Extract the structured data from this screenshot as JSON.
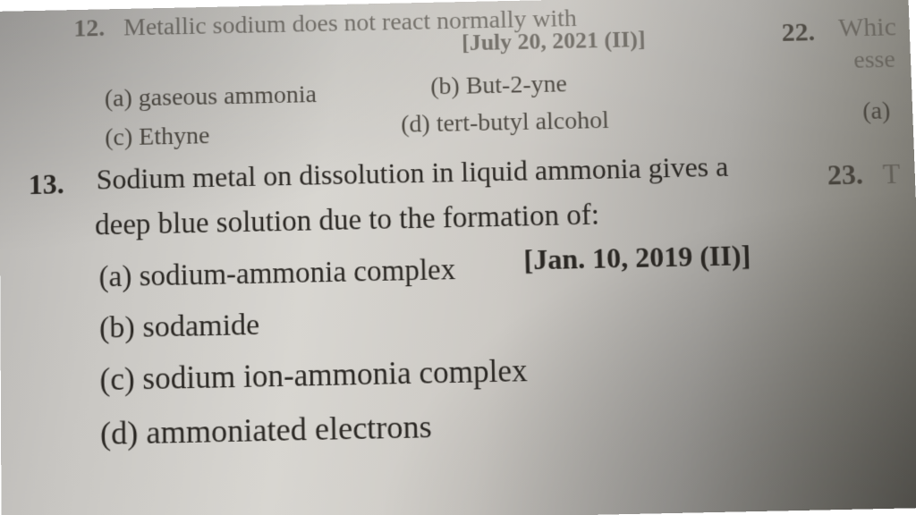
{
  "q12": {
    "num": "12.",
    "stem": "Metallic sodium does not react normally with",
    "source": "[July 20, 2021 (II)]",
    "a": "(a)  gaseous ammonia",
    "b": "(b)  But-2-yne",
    "c": "(c)  Ethyne",
    "d": "(d)  tert-butyl alcohol"
  },
  "q13": {
    "num": "13.",
    "line1": "Sodium metal on dissolution in liquid ammonia gives a",
    "line2": "deep blue solution due to the formation of:",
    "source": "[Jan. 10, 2019 (II)]",
    "a": "(a)   sodium-ammonia complex",
    "b": "(b)   sodamide",
    "c": "(c)   sodium ion-ammonia complex",
    "d": "(d)   ammoniated electrons"
  },
  "q22": {
    "num": "22.",
    "stemA": "Whic",
    "stemB": "esse",
    "ans": "(a)"
  },
  "q23": {
    "num": "23.",
    "stem": "T"
  }
}
